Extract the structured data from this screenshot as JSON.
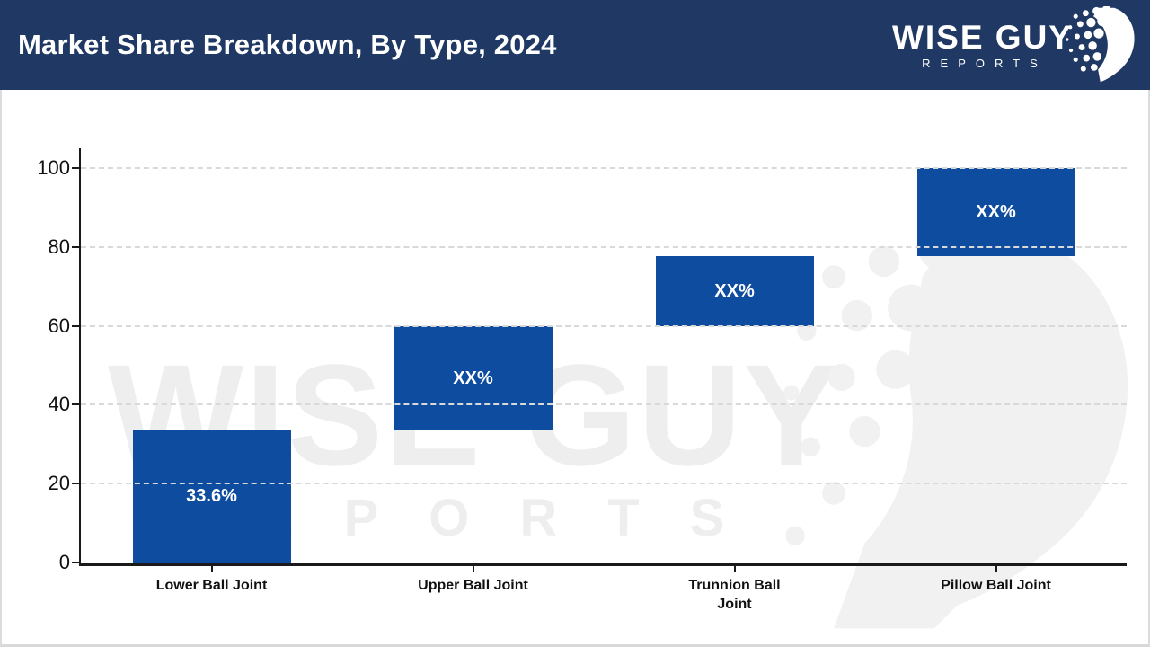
{
  "header": {
    "title": "Market Share Breakdown, By Type, 2024",
    "logo": {
      "name": "WISE GUY",
      "subtitle": "REPORTS"
    }
  },
  "watermark": {
    "line1": "WISE GUY",
    "line2": "REPORTS"
  },
  "chart_data": {
    "type": "bar",
    "subtype": "floating-waterfall",
    "title": "Market Share Breakdown, By Type, 2024",
    "categories": [
      "Lower Ball Joint",
      "Upper Ball Joint",
      "Trunnion Ball Joint",
      "Pillow Ball Joint"
    ],
    "segments": [
      {
        "category": "Lower Ball Joint",
        "label_lines": [
          "Lower Ball Joint"
        ],
        "start": 0,
        "end": 33.6,
        "label": "33.6%"
      },
      {
        "category": "Upper Ball Joint",
        "label_lines": [
          "Upper Ball Joint"
        ],
        "start": 33.6,
        "end": 60,
        "label": "XX%"
      },
      {
        "category": "Trunnion Ball Joint",
        "label_lines": [
          "Trunnion Ball",
          "Joint"
        ],
        "start": 60,
        "end": 77.6,
        "label": "XX%"
      },
      {
        "category": "Pillow Ball Joint",
        "label_lines": [
          "Pillow Ball Joint"
        ],
        "start": 77.6,
        "end": 100,
        "label": "XX%"
      }
    ],
    "y_ticks": [
      0,
      20,
      40,
      60,
      80,
      100
    ],
    "ylim": [
      0,
      105
    ],
    "xlabel": "",
    "ylabel": "",
    "grid": "horizontal-dashed",
    "legend": false,
    "bar_color": "#0e4c9f",
    "bar_label_color": "#ffffff",
    "axis_color": "#1a1a1a",
    "grid_color": "#d9d9d9"
  },
  "colors": {
    "header_bg": "#1f3864",
    "page_bg": "#ffffff",
    "watermark": "#eeeeee",
    "border": "#dcdcdc"
  }
}
